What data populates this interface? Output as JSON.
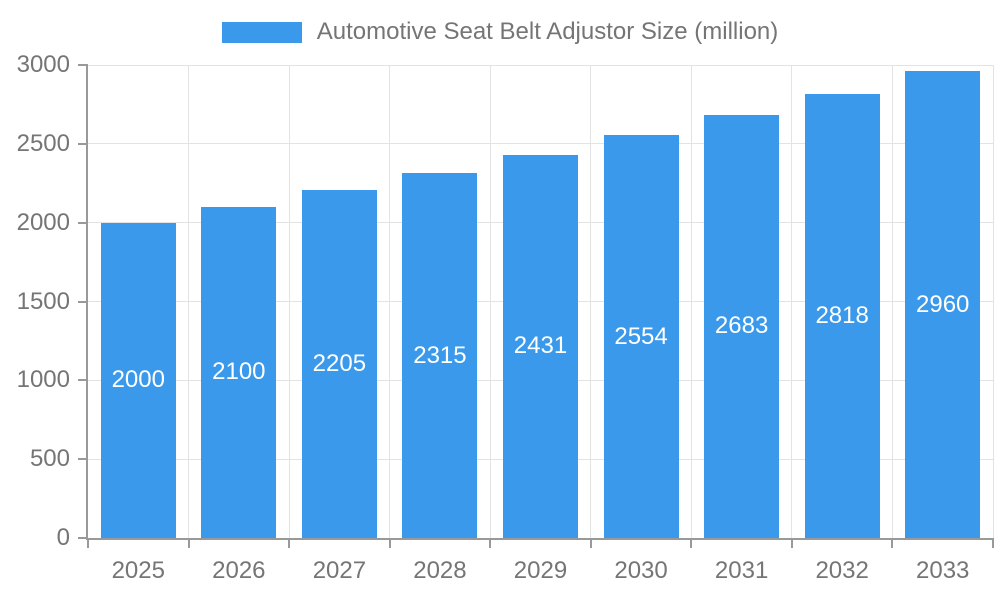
{
  "chart_data": {
    "type": "bar",
    "title": "Automotive Seat Belt Adjustor Size (million)",
    "categories": [
      "2025",
      "2026",
      "2027",
      "2028",
      "2029",
      "2030",
      "2031",
      "2032",
      "2033"
    ],
    "values": [
      2000,
      2100,
      2205,
      2315,
      2431,
      2554,
      2683,
      2818,
      2960
    ],
    "xlabel": "",
    "ylabel": "",
    "ylim": [
      0,
      3000
    ],
    "y_ticks": [
      0,
      500,
      1000,
      1500,
      2000,
      2500,
      3000
    ],
    "grid": true,
    "legend_position": "top",
    "colors": {
      "bar": "#3B99EC",
      "bar_label": "#ffffff",
      "axis": "#999999",
      "grid": "#e3e3e3",
      "text": "#757575",
      "background": "#ffffff"
    }
  }
}
